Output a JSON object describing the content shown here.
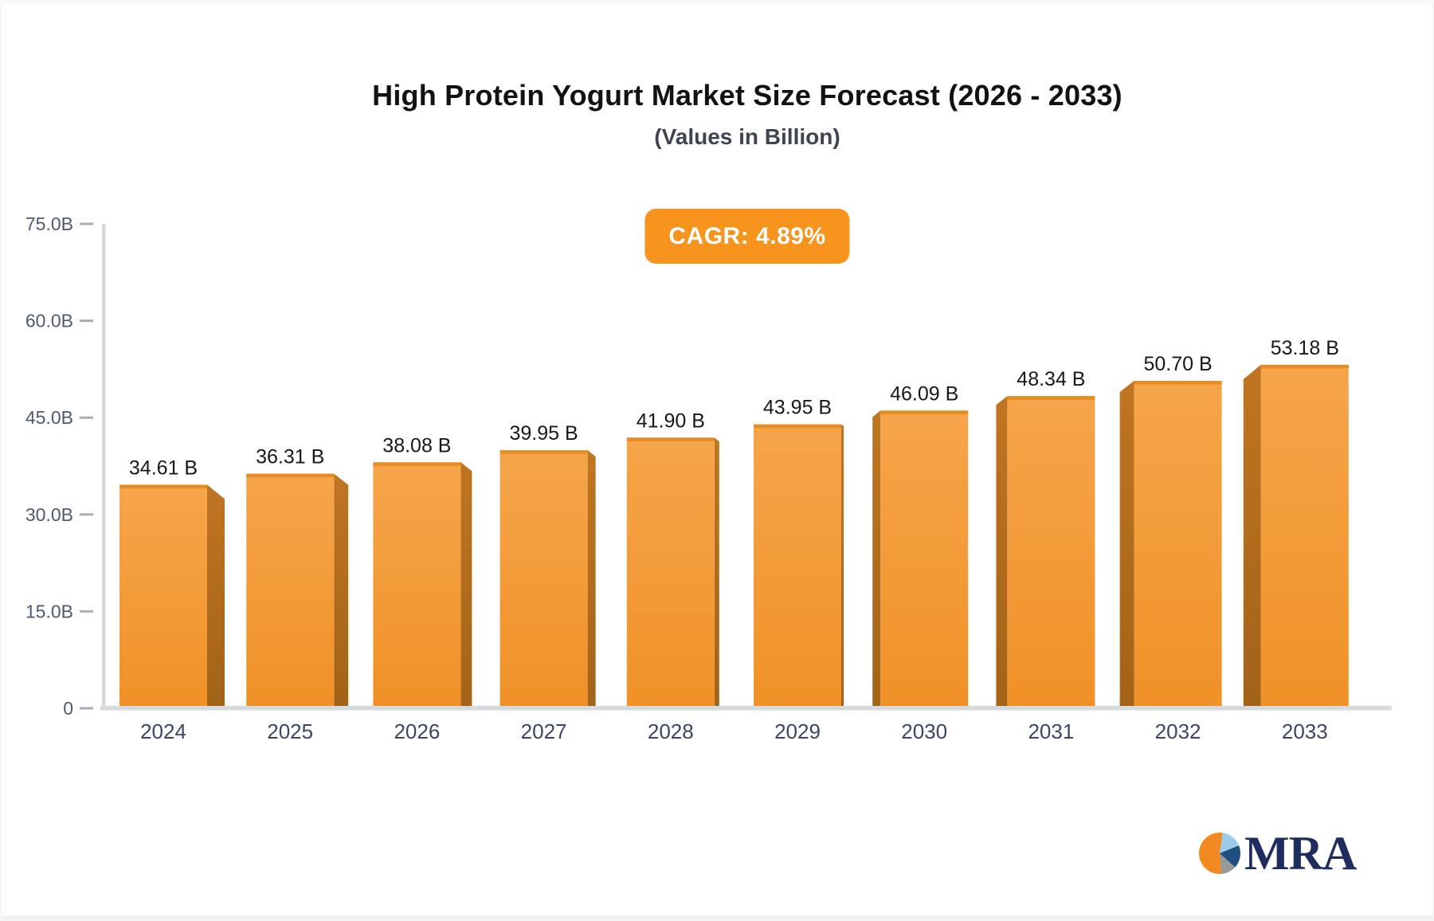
{
  "chart_data": {
    "type": "bar",
    "title": "High Protein Yogurt Market Size Forecast (2026 - 2033)",
    "subtitle": "(Values in Billion)",
    "annotation": "CAGR: 4.89%",
    "categories": [
      "2024",
      "2025",
      "2026",
      "2027",
      "2028",
      "2029",
      "2030",
      "2031",
      "2032",
      "2033"
    ],
    "values": [
      34.61,
      36.31,
      38.08,
      39.95,
      41.9,
      43.95,
      46.09,
      48.34,
      50.7,
      53.18
    ],
    "value_labels": [
      "34.61 B",
      "36.31 B",
      "38.08 B",
      "39.95 B",
      "41.90 B",
      "43.95 B",
      "46.09 B",
      "48.34 B",
      "50.70 B",
      "53.18 B"
    ],
    "xlabel": "",
    "ylabel": "",
    "ylim": [
      0,
      75
    ],
    "yticks_values": [
      75,
      60,
      45,
      30,
      15,
      0
    ],
    "ytick_labels": [
      "75.0B",
      "60.0B",
      "45.0B",
      "30.0B",
      "15.0B",
      "0"
    ],
    "grid": false,
    "legend": false,
    "bar_style": {
      "face_top": "#F6A54B",
      "face_bottom": "#F09127",
      "side_top": "#C07521",
      "side_bottom": "#A26318",
      "top_edge": "#E68C22"
    }
  },
  "colors": {
    "accent_orange": "#F7941E",
    "axis_line": "#D7DADD",
    "tick_dash": "#A8AEB9",
    "ytick_text": "#4E5A6E",
    "xtick_text": "#3B4760",
    "value_text": "#16181D",
    "logo_navy": "#1E2C5E"
  },
  "logo": {
    "text": "MRA",
    "pie_colors": {
      "orange": "#F28A21",
      "light_blue": "#9BCBE9",
      "navy": "#20507E",
      "gray": "#9A9A9C"
    }
  }
}
